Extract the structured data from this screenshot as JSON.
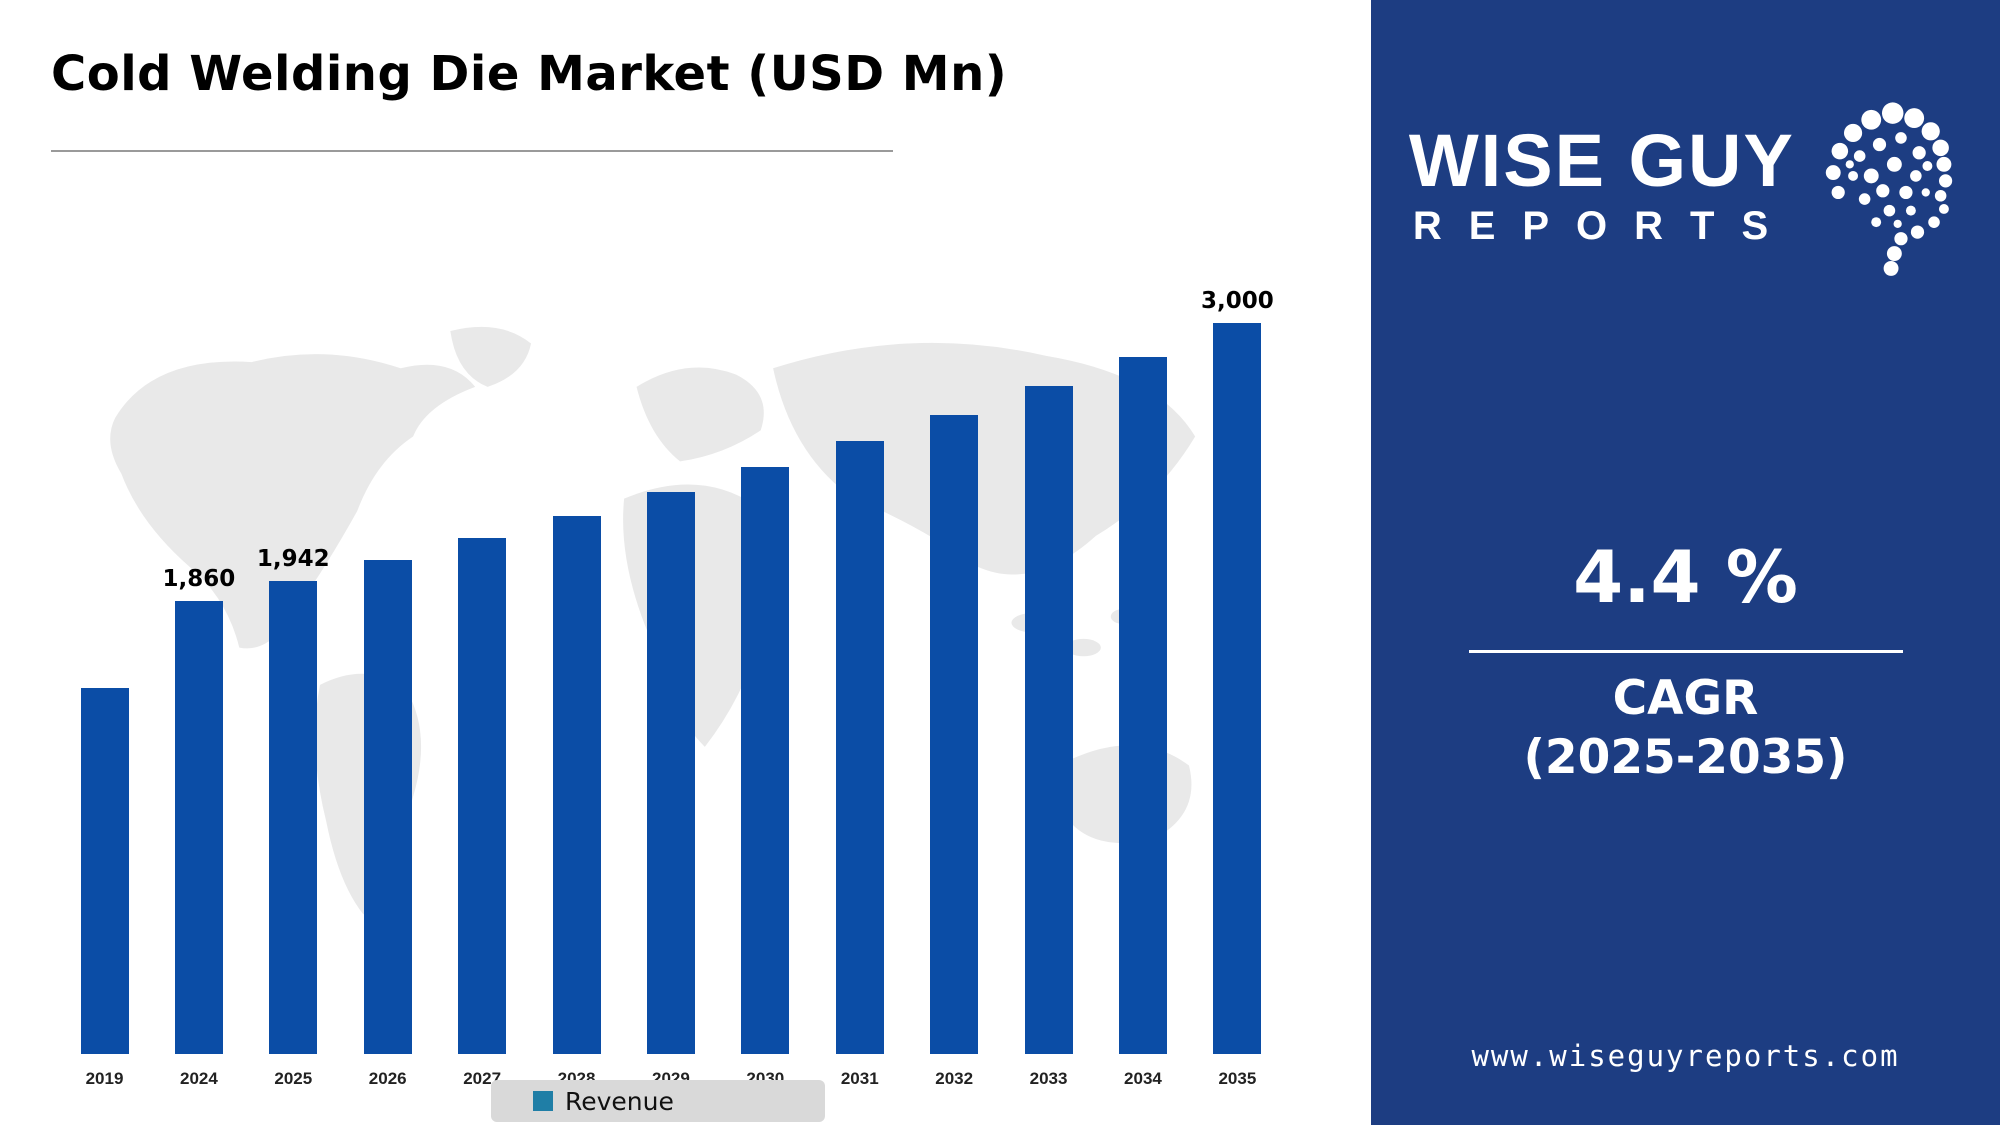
{
  "header": {
    "title": "Cold Welding Die Market (USD Mn)"
  },
  "chart_data": {
    "type": "bar",
    "title": "Cold Welding Die Market (USD Mn)",
    "categories": [
      "2019",
      "2024",
      "2025",
      "2026",
      "2027",
      "2028",
      "2029",
      "2030",
      "2031",
      "2032",
      "2033",
      "2034",
      "2035"
    ],
    "values": [
      1500,
      1860,
      1942,
      2027,
      2116,
      2209,
      2306,
      2408,
      2514,
      2624,
      2740,
      2860,
      3000
    ],
    "data_labels": [
      "",
      "1,860",
      "1,942",
      "",
      "",
      "",
      "",
      "",
      "",
      "",
      "",
      "",
      "3,000"
    ],
    "legend_label": "Revenue",
    "legend_position": "bottom",
    "xlabel": "",
    "ylabel": "",
    "ylim": [
      0,
      3100
    ],
    "grid": false,
    "bar_color": "#0b4da6",
    "legend_swatch_color": "#1f7ea6"
  },
  "sidebar": {
    "logo_line1": "WISE GUY",
    "logo_line2": "REPORTS",
    "cagr_value": "4.4 %",
    "cagr_label_line1": "CAGR",
    "cagr_label_line2": "(2025-2035)",
    "website": "www.wiseguyreports.com",
    "background_color": "#1d3d82"
  }
}
